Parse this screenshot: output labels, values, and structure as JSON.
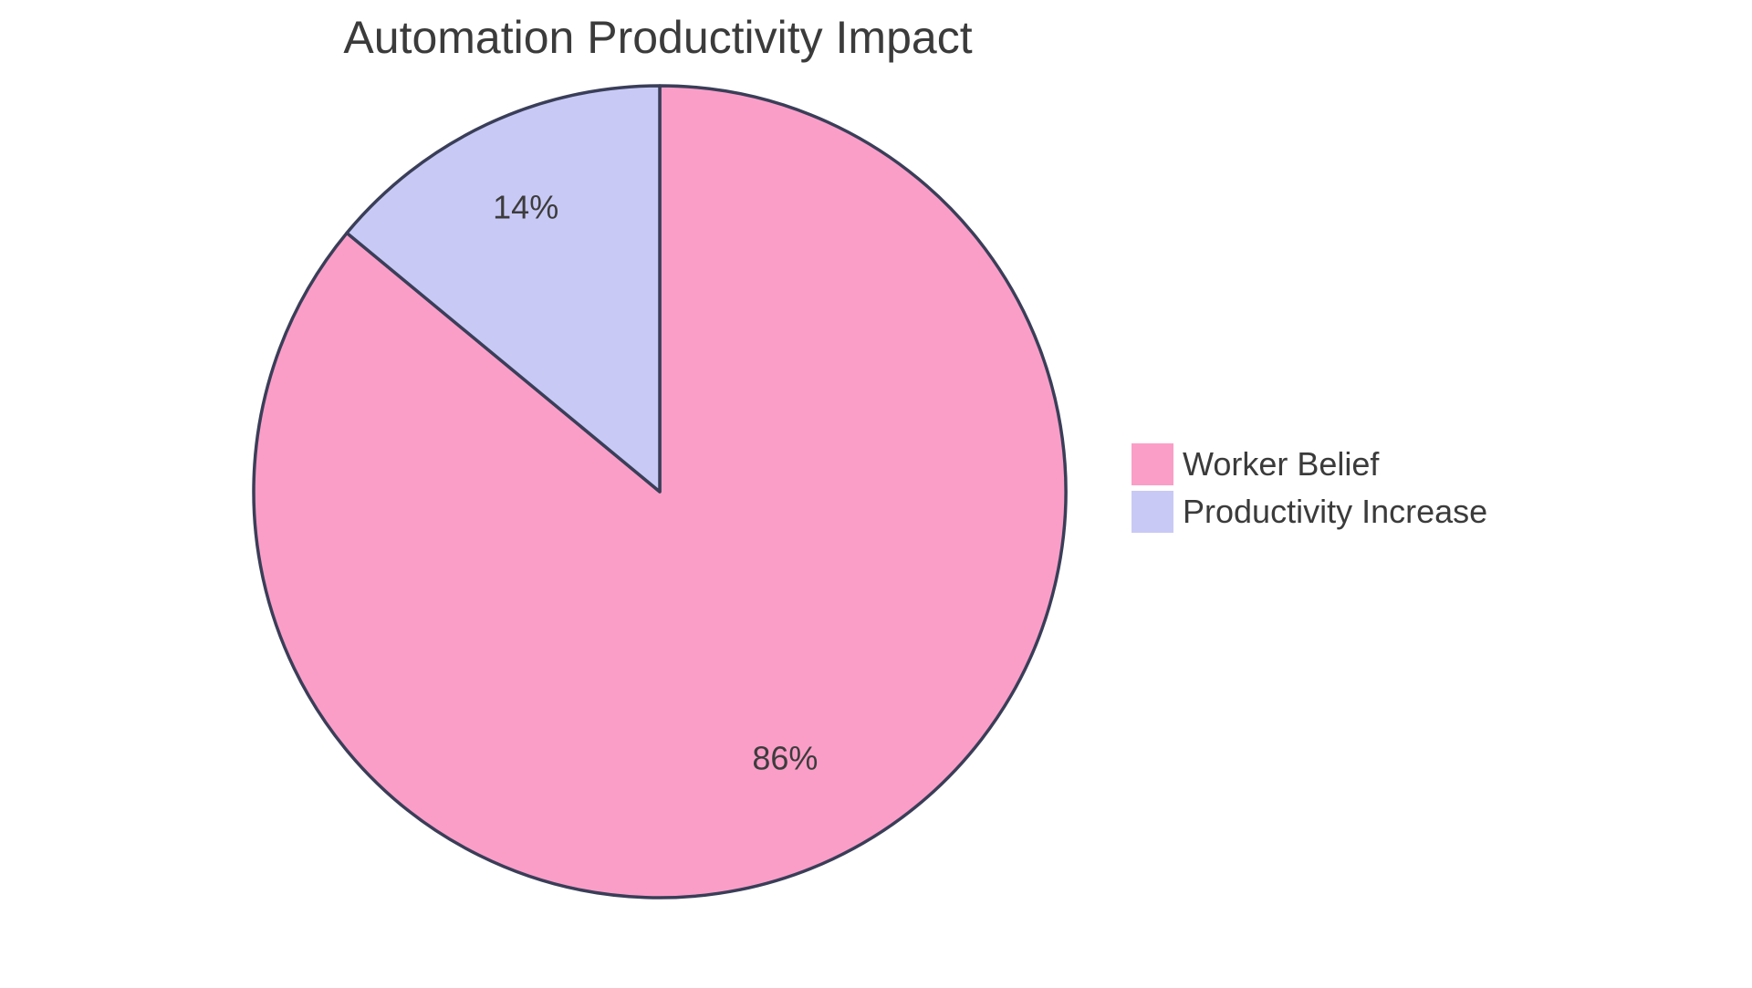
{
  "page": {
    "background": "#FFFFFF"
  },
  "chart_data": {
    "type": "pie",
    "title": "Automation Productivity Impact",
    "categories": [
      "Worker Belief",
      "Productivity Increase"
    ],
    "values": [
      86,
      14
    ],
    "unit": "%",
    "slices": [
      {
        "name": "Worker Belief",
        "value": 86,
        "label": "86%",
        "color": "#FA9EC8"
      },
      {
        "name": "Productivity Increase",
        "value": 14,
        "label": "14%",
        "color": "#C9C9F6"
      }
    ],
    "outline_color": "#3A3E58",
    "label_color": "#3C3C3C",
    "title_color": "#3B3B3B",
    "start_angle": "top",
    "direction": "clockwise",
    "legend_position": "right"
  }
}
